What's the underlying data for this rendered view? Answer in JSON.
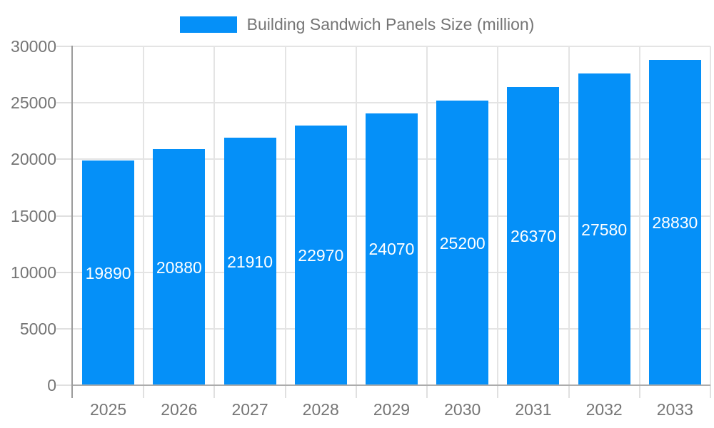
{
  "legend": {
    "label": "Building Sandwich Panels Size (million)"
  },
  "chart_data": {
    "type": "bar",
    "title": "Building Sandwich Panels Size (million)",
    "categories": [
      "2025",
      "2026",
      "2027",
      "2028",
      "2029",
      "2030",
      "2031",
      "2032",
      "2033"
    ],
    "values": [
      19890,
      20880,
      21910,
      22970,
      24070,
      25200,
      26370,
      27580,
      28830
    ],
    "bar_value_labels": [
      "19890",
      "20880",
      "21910",
      "22970",
      "24070",
      "25200",
      "26370",
      "27580",
      "28830"
    ],
    "xlabel": "",
    "ylabel": "",
    "ylim": [
      0,
      30000
    ],
    "ytick_step": 5000,
    "yticks": [
      "0",
      "5000",
      "10000",
      "15000",
      "20000",
      "25000",
      "30000"
    ],
    "grid": true,
    "legend_position": "top",
    "colors": {
      "bar": "#0590F8",
      "bar_label": "#FFFFFF",
      "axis_text": "#757575",
      "gridline": "#E4E4E4",
      "tick": "#E0E0E0",
      "axis_line": "#9B9B9B",
      "baseline": "#ACACAC",
      "background": "#FFFFFF"
    }
  }
}
